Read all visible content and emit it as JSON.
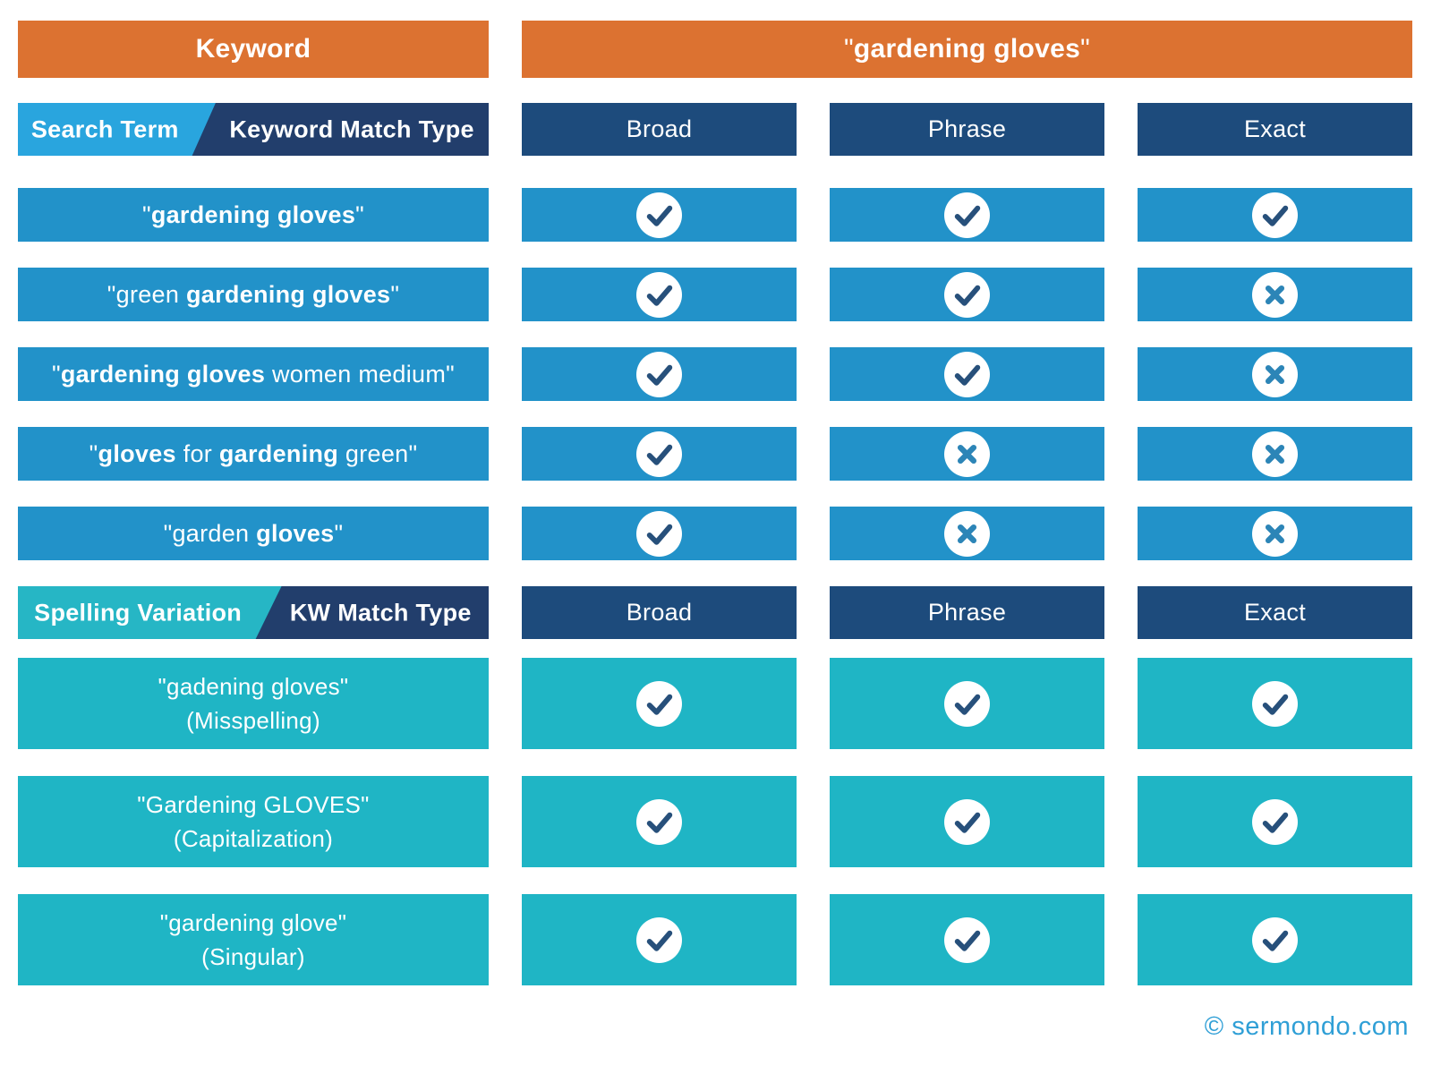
{
  "top": {
    "keyword_label": "Keyword",
    "keyword_value": [
      {
        "t": "\"",
        "b": false
      },
      {
        "t": "gardening gloves",
        "b": true
      },
      {
        "t": "\"",
        "b": false
      }
    ]
  },
  "main_table": {
    "split_header": {
      "left": "Search Term",
      "right": "Keyword Match Type"
    },
    "match_headers": [
      "Broad",
      "Phrase",
      "Exact"
    ],
    "rows": [
      {
        "term": [
          {
            "t": "\"",
            "b": false
          },
          {
            "t": "gardening gloves",
            "b": true
          },
          {
            "t": "\"",
            "b": false
          }
        ],
        "matches": [
          true,
          true,
          true
        ]
      },
      {
        "term": [
          {
            "t": "\"green ",
            "b": false
          },
          {
            "t": "gardening gloves",
            "b": true
          },
          {
            "t": "\"",
            "b": false
          }
        ],
        "matches": [
          true,
          true,
          false
        ]
      },
      {
        "term": [
          {
            "t": "\"",
            "b": false
          },
          {
            "t": "gardening gloves",
            "b": true
          },
          {
            "t": " women medium\"",
            "b": false
          }
        ],
        "matches": [
          true,
          true,
          false
        ]
      },
      {
        "term": [
          {
            "t": "\"",
            "b": false
          },
          {
            "t": "gloves",
            "b": true
          },
          {
            "t": " for ",
            "b": false
          },
          {
            "t": "gardening",
            "b": true
          },
          {
            "t": " green\"",
            "b": false
          }
        ],
        "matches": [
          true,
          false,
          false
        ]
      },
      {
        "term": [
          {
            "t": "\"garden ",
            "b": false
          },
          {
            "t": "gloves",
            "b": true
          },
          {
            "t": "\"",
            "b": false
          }
        ],
        "matches": [
          true,
          false,
          false
        ]
      }
    ]
  },
  "variation_table": {
    "split_header": {
      "left": "Spelling Variation",
      "right": "KW Match Type"
    },
    "match_headers": [
      "Broad",
      "Phrase",
      "Exact"
    ],
    "rows": [
      {
        "line1": "\"gadening gloves\"",
        "line2": "(Misspelling)",
        "matches": [
          true,
          true,
          true
        ]
      },
      {
        "line1": "\"Gardening GLOVES\"",
        "line2": "(Capitalization)",
        "matches": [
          true,
          true,
          true
        ]
      },
      {
        "line1": "\"gardening glove\"",
        "line2": "(Singular)",
        "matches": [
          true,
          true,
          true
        ]
      }
    ]
  },
  "footer": {
    "credit": "© sermondo.com"
  },
  "icons": {
    "match": "check-icon",
    "no_match": "cross-icon"
  },
  "colors": {
    "orange": "#DC7231",
    "light_blue": "#29A5DE",
    "split_navy": "#223E6C",
    "header_navy": "#1D4B7C",
    "row_blue": "#2292C9",
    "teal_header": "#26B6C5",
    "teal_row": "#1FB5C5",
    "check_navy": "#27507B",
    "cross_blue": "#2C85B7",
    "credit_blue": "#2F9FD6"
  }
}
